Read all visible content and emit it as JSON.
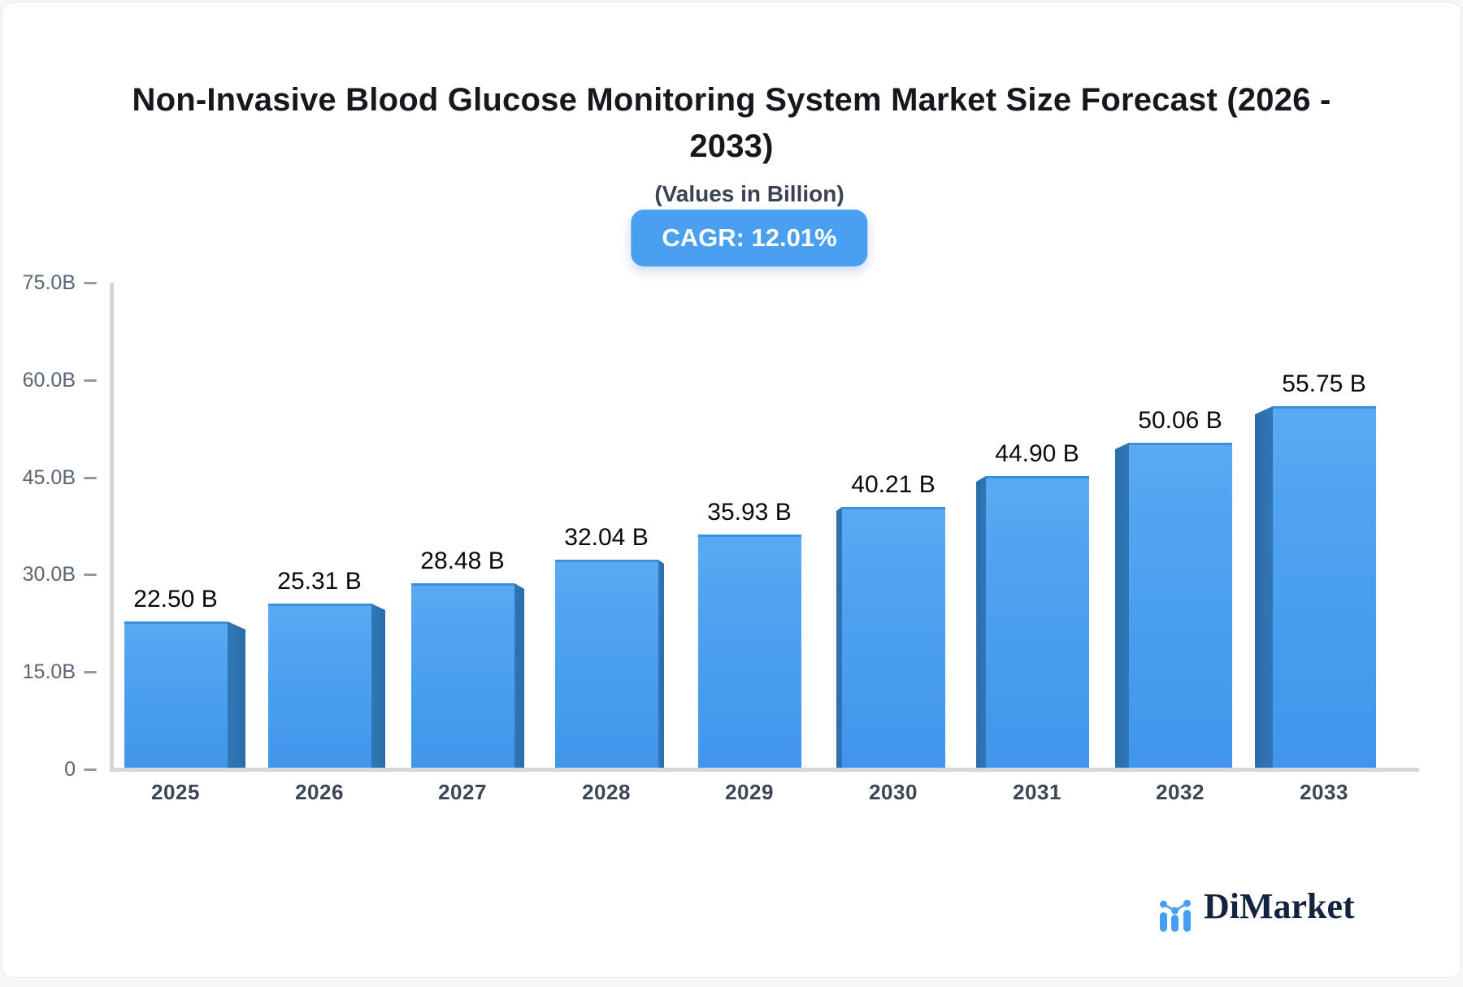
{
  "page": {
    "background": "#f5f6f8",
    "card_background": "#ffffff"
  },
  "header": {
    "title_line1": "Non-Invasive Blood Glucose Monitoring System Market Size Forecast (2026 -",
    "title_line2": "2033)",
    "subtitle": "(Values in Billion)",
    "cagr_badge": "CAGR: 12.01%"
  },
  "logo": {
    "brand": "DiMarket",
    "icon": "bar-chart-with-trend-dots-icon",
    "icon_color": "#459ff2",
    "text_color": "#14233f"
  },
  "colors": {
    "bar_face": "#4ba0ef",
    "bar_face_top_edge": "#3e8fda",
    "bar_side": "#2d72b0",
    "badge": "#49a0f1",
    "axis": "#d5d6dc",
    "tick": "#949aa5",
    "y_label": "#596474",
    "x_label": "#3c4552",
    "value_label": "#0a0a0a"
  },
  "chart_data": {
    "type": "bar",
    "title": "Non-Invasive Blood Glucose Monitoring System Market Size Forecast (2026 - 2033)",
    "subtitle": "(Values in Billion)",
    "cagr": "12.01%",
    "categories": [
      "2025",
      "2026",
      "2027",
      "2028",
      "2029",
      "2030",
      "2031",
      "2032",
      "2033"
    ],
    "values": [
      22.5,
      25.31,
      28.48,
      32.04,
      35.93,
      40.21,
      44.9,
      50.06,
      55.75
    ],
    "value_labels": [
      "22.50 B",
      "25.31 B",
      "28.48 B",
      "32.04 B",
      "35.93 B",
      "40.21 B",
      "44.90 B",
      "50.06 B",
      "55.75 B"
    ],
    "unit": "Billion",
    "xlabel": "",
    "ylabel": "",
    "ylim": [
      0,
      75
    ],
    "y_ticks": [
      {
        "label": "75.0B",
        "value": 75
      },
      {
        "label": "60.0B",
        "value": 60
      },
      {
        "label": "45.0B",
        "value": 45
      },
      {
        "label": "30.0B",
        "value": 30
      },
      {
        "label": "15.0B",
        "value": 15
      },
      {
        "label": "0",
        "value": 0
      }
    ],
    "grid": false,
    "legend": false,
    "bar_style": "3d-perspective-blue"
  }
}
